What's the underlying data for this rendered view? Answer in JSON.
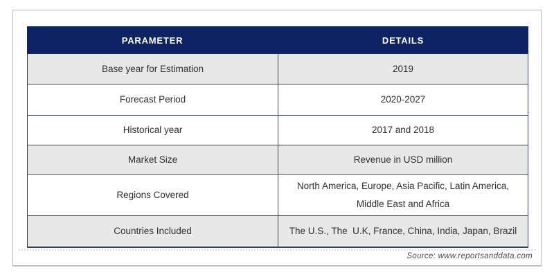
{
  "table": {
    "headers": {
      "parameter": "PARAMETER",
      "details": "DETAILS"
    },
    "rows": [
      {
        "parameter": "Base year for Estimation",
        "details": "2019"
      },
      {
        "parameter": "Forecast Period",
        "details": "2020-2027"
      },
      {
        "parameter": "Historical year",
        "details": "2017 and 2018"
      },
      {
        "parameter": "Market Size",
        "details": "Revenue in USD million"
      },
      {
        "parameter": "Regions Covered",
        "details": "North America, Europe, Asia Pacific, Latin America, Middle East and Africa"
      },
      {
        "parameter": "Countries Included",
        "details": "The U.S., The  U.K, France, China, India, Japan, Brazil"
      }
    ]
  },
  "footer": {
    "source": "Source: www.reportsanddata.com"
  },
  "colors": {
    "header_background": "#0d2363",
    "header_text": "#ffffff",
    "row_shaded": "#e8e8e8",
    "row_plain": "#ffffff",
    "cell_border": "#35426b",
    "card_border": "#b5b5b5",
    "source_text": "#4a4a4a"
  }
}
